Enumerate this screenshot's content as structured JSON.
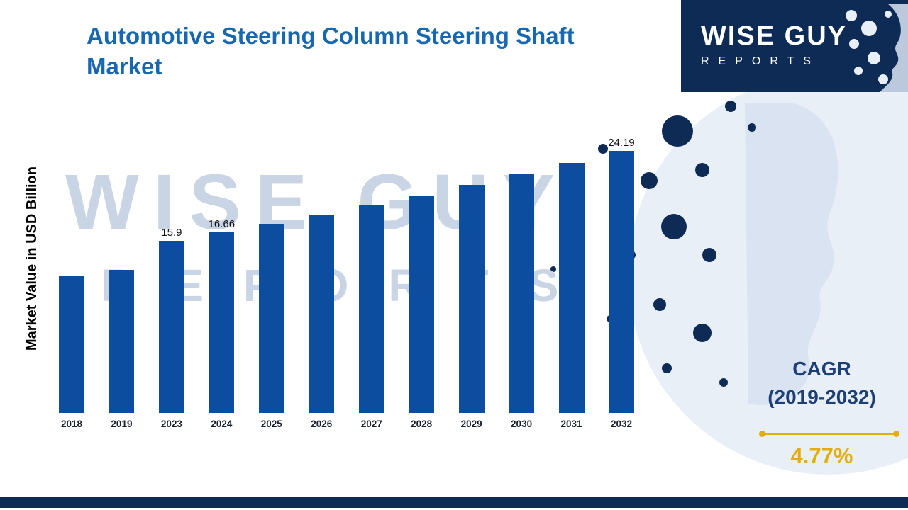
{
  "page": {
    "title": "Automotive Steering Column Steering Shaft Market"
  },
  "logo": {
    "line1": "WISE GUY",
    "line2": "REPORTS"
  },
  "watermark": {
    "line1": "WISE GUY",
    "line2": "REPORTS"
  },
  "cagr": {
    "label": "CAGR",
    "range": "(2019-2032)",
    "value": "4.77%"
  },
  "chart_data": {
    "type": "bar",
    "title": "Automotive Steering Column Steering Shaft Market",
    "xlabel": "",
    "ylabel": "Market Value in USD Billion",
    "categories": [
      "2018",
      "2019",
      "2023",
      "2024",
      "2025",
      "2026",
      "2027",
      "2028",
      "2029",
      "2030",
      "2031",
      "2032"
    ],
    "values": [
      12.6,
      13.2,
      15.9,
      16.66,
      17.45,
      18.28,
      19.16,
      20.07,
      21.03,
      22.03,
      23.08,
      24.19
    ],
    "data_labels": [
      "",
      "",
      "15.9",
      "16.66",
      "",
      "",
      "",
      "",
      "",
      "",
      "",
      "24.19"
    ],
    "ylim": [
      0,
      26
    ],
    "grid": false,
    "legend_position": "none",
    "bar_color": "#0c4da0"
  },
  "colors": {
    "title": "#1767b1",
    "navy_block": "#0e2b55",
    "bar": "#0c4da0",
    "gold": "#e3ae0d",
    "watermark": "#c9d4e4",
    "cagr_text": "#1d3f77"
  }
}
